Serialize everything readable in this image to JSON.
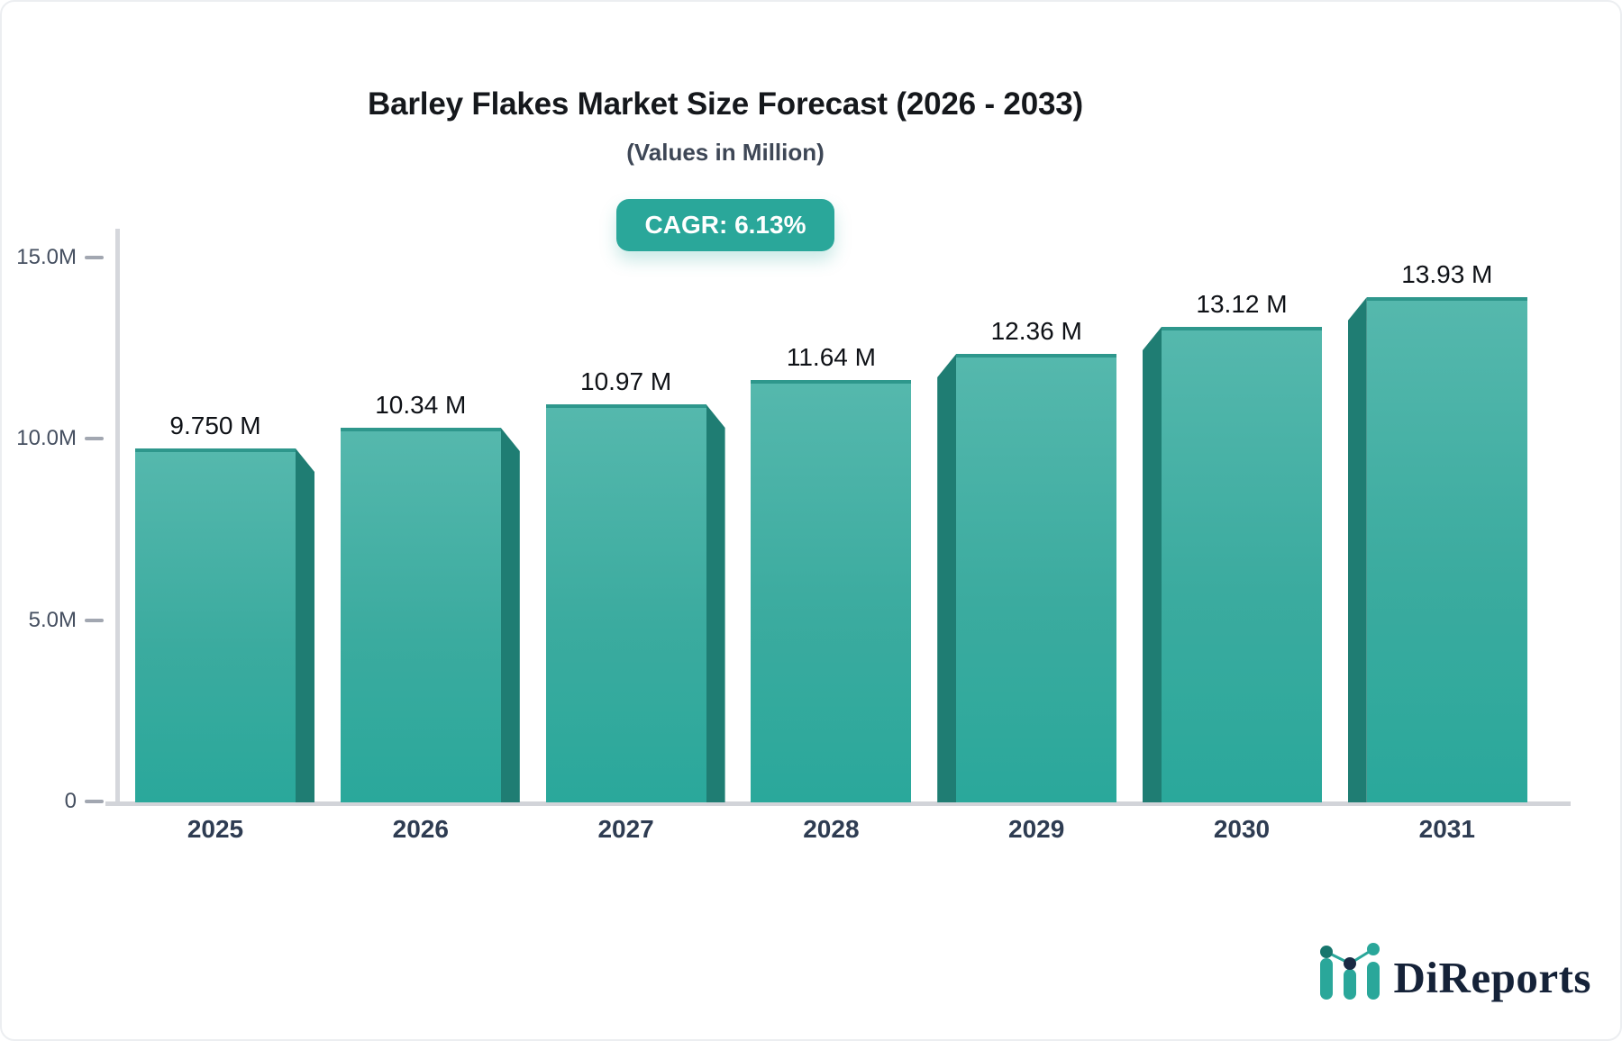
{
  "chart_data": {
    "type": "bar",
    "title": "Barley Flakes Market Size Forecast (2026 - 2033)",
    "subtitle": "(Values in Million)",
    "cagr_label": "CAGR: 6.13%",
    "categories": [
      "2025",
      "2026",
      "2027",
      "2028",
      "2029",
      "2030",
      "2031"
    ],
    "values": [
      9.75,
      10.34,
      10.97,
      11.64,
      12.36,
      13.12,
      13.93
    ],
    "value_labels": [
      "9.750 M",
      "10.34 M",
      "10.97 M",
      "11.64 M",
      "12.36 M",
      "13.12 M",
      "13.93 M"
    ],
    "unit": "M",
    "ylim": [
      0,
      15
    ],
    "yticks": [
      {
        "label": "15.0M",
        "value": 15
      },
      {
        "label": "10.0M",
        "value": 10
      },
      {
        "label": "5.0M",
        "value": 5
      },
      {
        "label": "0",
        "value": 0
      }
    ],
    "grid": false,
    "legend": false,
    "bar_3d_perspective": "center"
  },
  "colors": {
    "accent_teal": "#2aa79a",
    "bar_face_top": "#55b8ad",
    "bar_face_bottom": "#2aa89b",
    "bar_top_edge": "#2e978c",
    "bar_side_dark": "#1f7d73",
    "axis_line": "#d5d7dc",
    "tick": "#a2a7b1",
    "title_text": "#15181c",
    "subtitle_text": "#3e4756",
    "year_label_text": "#2e3c52",
    "logo_navy": "#152238"
  },
  "logo": {
    "text": "DiReports",
    "icon": "mini-bar-chart-with-trend-dots"
  }
}
